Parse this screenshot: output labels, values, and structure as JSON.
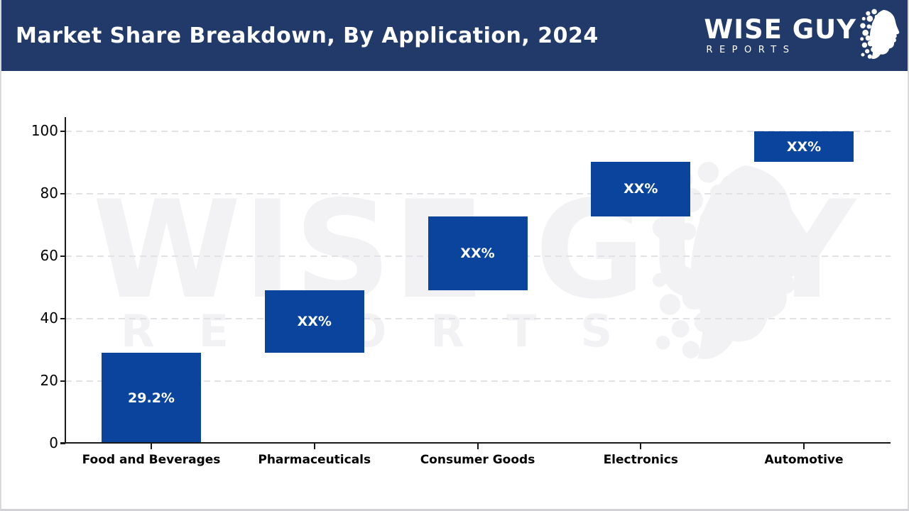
{
  "header": {
    "title": "Market Share Breakdown, By Application, 2024",
    "brand": {
      "line1": "WISE GUY",
      "line2": "REPORTS"
    }
  },
  "watermark": {
    "line1": "WISE GUY",
    "line2": "REPORTS"
  },
  "colors": {
    "header_bg": "#223a69",
    "bar": "#0a449c",
    "bar_label": "#ffffff",
    "gridline": "#e2e2e6",
    "watermark": "#f2f2f5"
  },
  "chart_data": {
    "type": "bar",
    "subtype": "waterfall (floating segments, cumulative to 100%)",
    "title": "Market Share Breakdown, By Application, 2024",
    "xlabel": "",
    "ylabel": "",
    "ylim": [
      0,
      105
    ],
    "yticks": [
      0,
      20,
      40,
      60,
      80,
      100
    ],
    "grid": "horizontal dashed",
    "legend": "none",
    "categories": [
      "Food and Beverages",
      "Pharmaceuticals",
      "Consumer Goods",
      "Electronics",
      "Automotive"
    ],
    "segments": [
      {
        "category": "Food and Beverages",
        "start": 0,
        "end": 29.2,
        "value": 29.2,
        "label": "29.2%"
      },
      {
        "category": "Pharmaceuticals",
        "start": 29.2,
        "end": 49.2,
        "value": 20.0,
        "label": "XX%"
      },
      {
        "category": "Consumer Goods",
        "start": 49.2,
        "end": 72.8,
        "value": 23.6,
        "label": "XX%"
      },
      {
        "category": "Electronics",
        "start": 72.8,
        "end": 90.2,
        "value": 17.4,
        "label": "XX%"
      },
      {
        "category": "Automotive",
        "start": 90.2,
        "end": 100,
        "value": 9.8,
        "label": "XX%"
      }
    ]
  }
}
